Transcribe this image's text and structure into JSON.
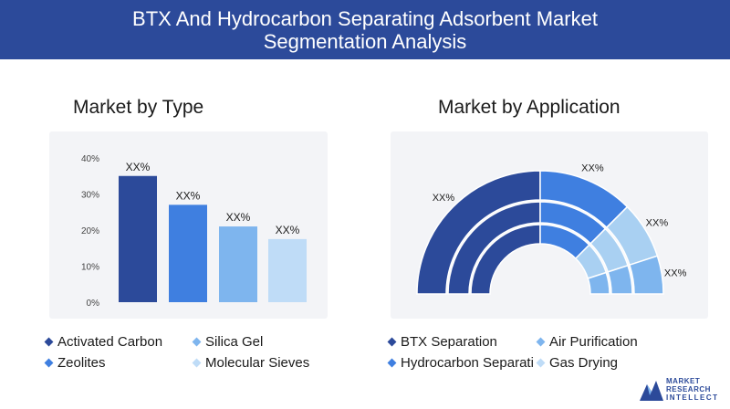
{
  "header": {
    "title_line1": "BTX And Hydrocarbon Separating Adsorbent Market",
    "title_line2": "Segmentation Analysis"
  },
  "chart_data": [
    {
      "type": "bar",
      "title": "Market by Type",
      "categories": [
        "Activated Carbon",
        "Silica Gel",
        "Zeolites",
        "Molecular Sieves"
      ],
      "values": [
        35,
        27,
        21,
        17.5
      ],
      "value_labels": [
        "XX%",
        "XX%",
        "XX%",
        "XX%"
      ],
      "y_ticks": [
        "0%",
        "10%",
        "20%",
        "30%",
        "40%"
      ],
      "ylim": [
        0,
        40
      ],
      "colors": [
        "#2c4a9a",
        "#3f7fe0",
        "#7eb5ee",
        "#bfdcf7"
      ],
      "grid": false,
      "legend": "bottom"
    },
    {
      "type": "pie",
      "style": "semi-donut, multi-ring",
      "title": "Market by Application",
      "categories": [
        "BTX Separation",
        "Air Purification",
        "Hydrocarbon Separation",
        "Gas Drying"
      ],
      "values": [
        50,
        25,
        15,
        10
      ],
      "slice_labels": [
        "XX%",
        "XX%",
        "XX%",
        "XX%"
      ],
      "colors": [
        "#2c4a9a",
        "#3f7fe0",
        "#a9d0f2",
        "#7eb5ee"
      ],
      "legend": "bottom"
    }
  ],
  "legend_type": {
    "items": [
      {
        "label": "Activated Carbon",
        "color": "#2c4a9a"
      },
      {
        "label": "Silica Gel",
        "color": "#7eb5ee"
      },
      {
        "label": "Zeolites",
        "color": "#3f7fe0"
      },
      {
        "label": "Molecular Sieves",
        "color": "#bfdcf7"
      }
    ]
  },
  "legend_app": {
    "items": [
      {
        "label": "BTX Separation",
        "color": "#2c4a9a"
      },
      {
        "label": "Air Purification",
        "color": "#7eb5ee"
      },
      {
        "label": "Hydrocarbon Separati",
        "color": "#3f7fe0"
      },
      {
        "label": "Gas Drying",
        "color": "#bfdcf7"
      }
    ]
  },
  "logo": {
    "line1": "MARKET",
    "line2": "RESEARCH",
    "line3": "INTELLECT",
    "icon": "mountain-m-logo-icon",
    "color": "#2c4a9a"
  }
}
